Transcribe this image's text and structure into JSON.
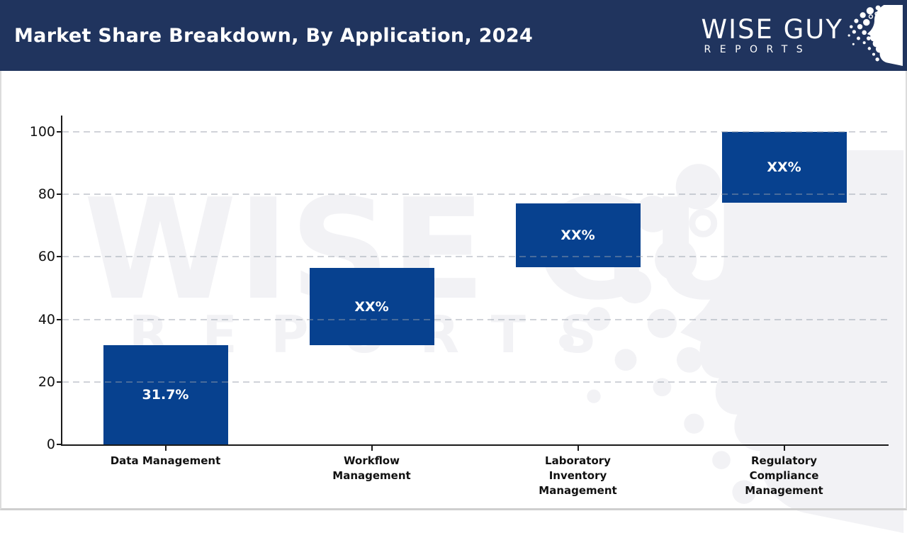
{
  "header": {
    "title": "Market Share Breakdown, By Application, 2024",
    "bg_color": "#20345e",
    "logo": {
      "line1": "WISE GUY",
      "line2": "REPORTS"
    }
  },
  "watermark": {
    "line1": "WISE GUY",
    "line2": "REPORTS"
  },
  "chart_data": {
    "type": "bar",
    "subtype": "waterfall",
    "title": "Market Share Breakdown, By Application, 2024",
    "categories": [
      [
        "Data Management"
      ],
      [
        "Workflow",
        "Management"
      ],
      [
        "Laboratory",
        "Inventory",
        "Management"
      ],
      [
        "Regulatory",
        "Compliance",
        "Management"
      ]
    ],
    "segments": [
      {
        "category": "Data Management",
        "start": 0,
        "end": 31.7,
        "label": "31.7%"
      },
      {
        "category": "Workflow Management",
        "start": 31.7,
        "end": 56.4,
        "label": "XX%"
      },
      {
        "category": "Laboratory Inventory Management",
        "start": 56.6,
        "end": 77.1,
        "label": "XX%"
      },
      {
        "category": "Regulatory Compliance Management",
        "start": 77.3,
        "end": 100,
        "label": "XX%"
      }
    ],
    "ylim": [
      0,
      100
    ],
    "yticks": [
      0,
      20,
      40,
      60,
      80,
      100
    ],
    "xlabel": "",
    "ylabel": "",
    "grid": "horizontal-dashed",
    "legend": "none",
    "bar_color": "#07418f",
    "bar_label_color": "#ffffff",
    "axis_color": "#1a1a1a"
  }
}
